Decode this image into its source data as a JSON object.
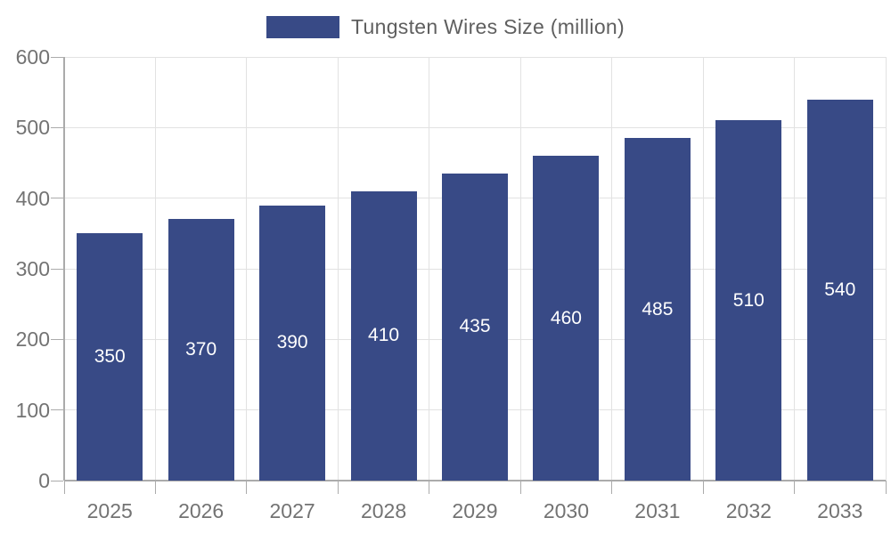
{
  "legend": {
    "label": "Tungsten Wires Size (million)"
  },
  "colors": {
    "bar": "#384A86",
    "bar_value_label": "#FFFFFF",
    "axis_text": "#737373",
    "legend_text": "#5F5F5F",
    "gridline": "#E2E2E2",
    "axis_line": "#ABABAB",
    "background": "#FFFFFF"
  },
  "chart_data": {
    "type": "bar",
    "title": "Tungsten Wires Size (million)",
    "categories": [
      "2025",
      "2026",
      "2027",
      "2028",
      "2029",
      "2030",
      "2031",
      "2032",
      "2033"
    ],
    "values": [
      350,
      370,
      390,
      410,
      435,
      460,
      485,
      510,
      540
    ],
    "series": [
      {
        "name": "Tungsten Wires Size (million)",
        "values": [
          350,
          370,
          390,
          410,
          435,
          460,
          485,
          510,
          540
        ]
      }
    ],
    "xlabel": "",
    "ylabel": "",
    "ylim": [
      0,
      600
    ],
    "yticks": [
      0,
      100,
      200,
      300,
      400,
      500,
      600
    ],
    "grid": true,
    "legend_position": "top",
    "value_labels": "inside-center"
  }
}
